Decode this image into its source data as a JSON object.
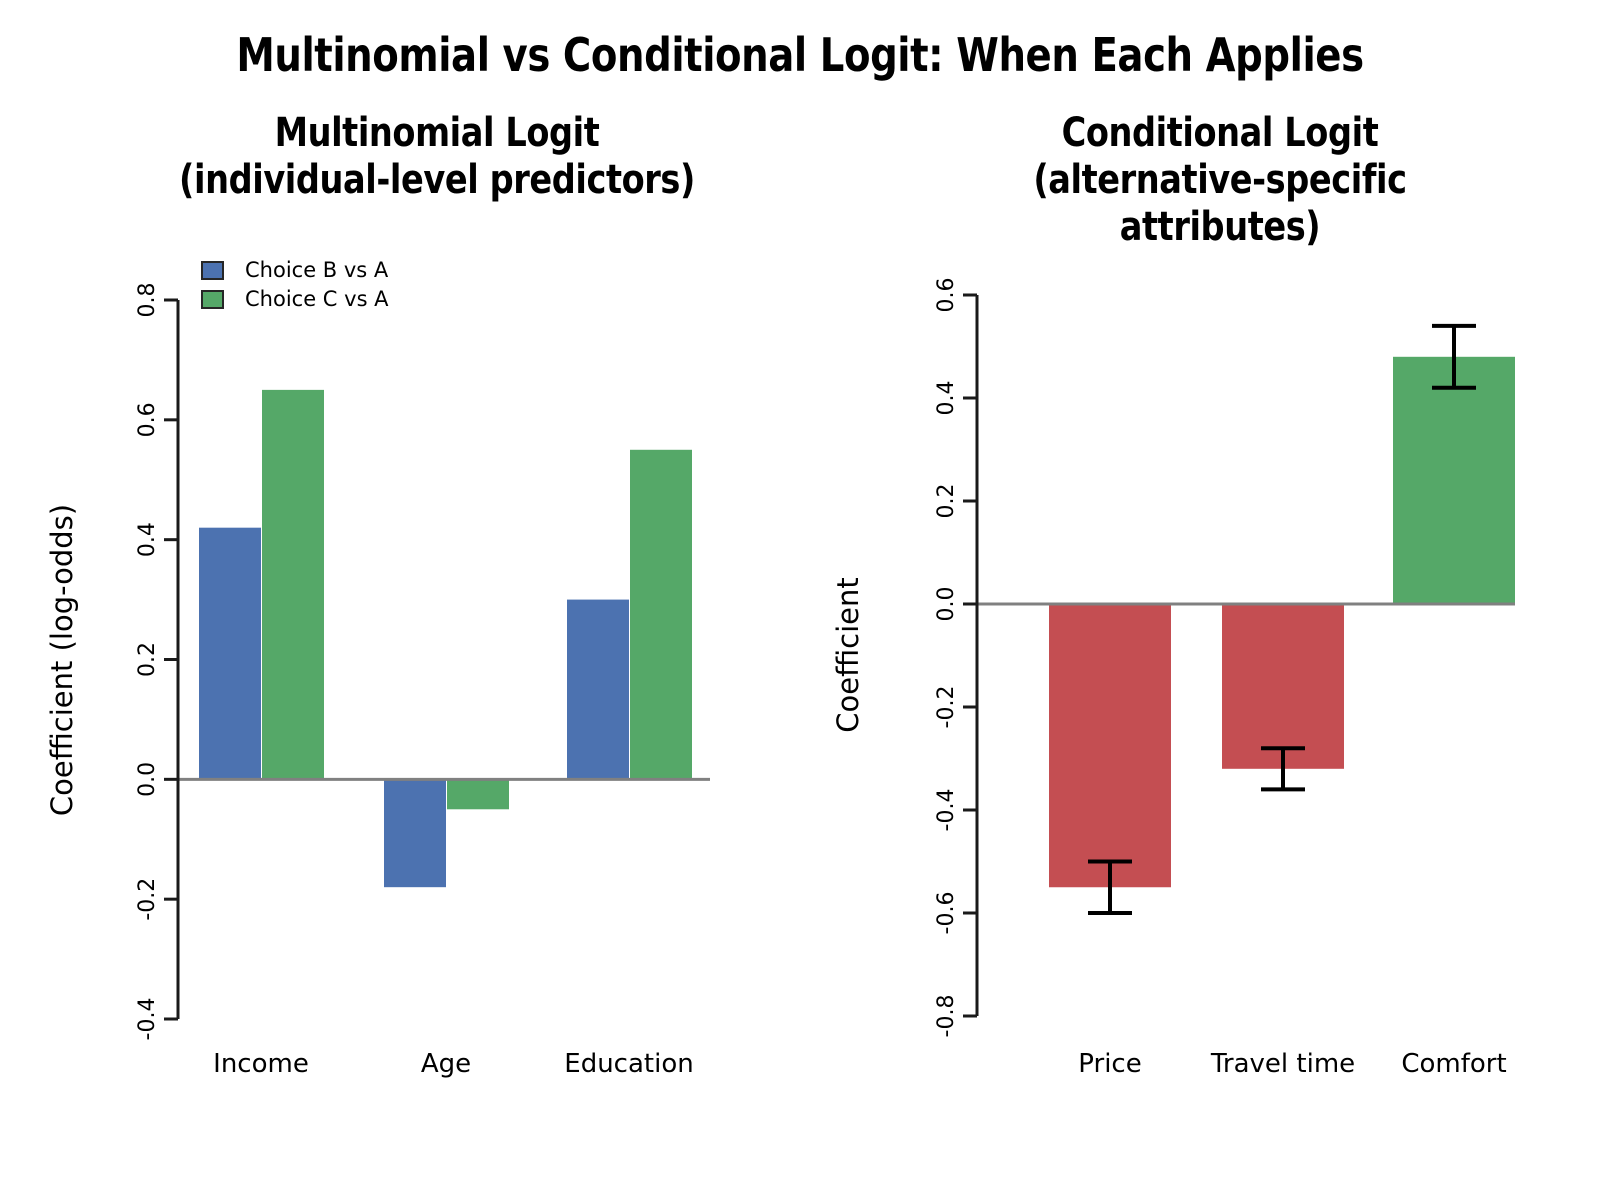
{
  "page": {
    "title": "Multinomial vs Conditional Logit: When Each Applies"
  },
  "colors": {
    "blue": "#4C72B0",
    "green": "#55A868",
    "red": "#C44E52",
    "zero_line": "#808080",
    "axis": "#1a1a1a",
    "error_bar": "#000000"
  },
  "chart_data": [
    {
      "id": "multinomial",
      "type": "bar",
      "title": "Multinomial Logit",
      "subtitle": "(individual-level predictors)",
      "ylabel": "Coefficient (log-odds)",
      "xlabel": "",
      "categories": [
        "Income",
        "Age",
        "Education"
      ],
      "series": [
        {
          "name": "Choice B vs A",
          "color": "#4C72B0",
          "values": [
            0.42,
            -0.18,
            0.3
          ]
        },
        {
          "name": "Choice C vs A",
          "color": "#55A868",
          "values": [
            0.65,
            -0.05,
            0.55
          ]
        }
      ],
      "ylim": [
        -0.4,
        0.8
      ],
      "yticks": [
        "-0.4",
        "-0.2",
        "0.0",
        "0.2",
        "0.4",
        "0.6",
        "0.8"
      ],
      "legend_position": "top-left",
      "zero_line": true,
      "grid": false
    },
    {
      "id": "conditional",
      "type": "bar",
      "title": "Conditional Logit",
      "subtitle": "(alternative-specific attributes)",
      "ylabel": "Coefficient",
      "xlabel": "",
      "categories": [
        "Price",
        "Travel time",
        "Comfort"
      ],
      "series": [
        {
          "name": "Coefficient",
          "colors": [
            "#C44E52",
            "#C44E52",
            "#55A868"
          ],
          "values": [
            -0.55,
            -0.32,
            0.48
          ],
          "errors": [
            0.05,
            0.04,
            0.06
          ]
        }
      ],
      "ylim": [
        -0.8,
        0.6
      ],
      "yticks": [
        "-0.8",
        "-0.6",
        "-0.4",
        "-0.2",
        "0.0",
        "0.2",
        "0.4",
        "0.6"
      ],
      "legend_position": "none",
      "zero_line": true,
      "grid": false
    }
  ]
}
